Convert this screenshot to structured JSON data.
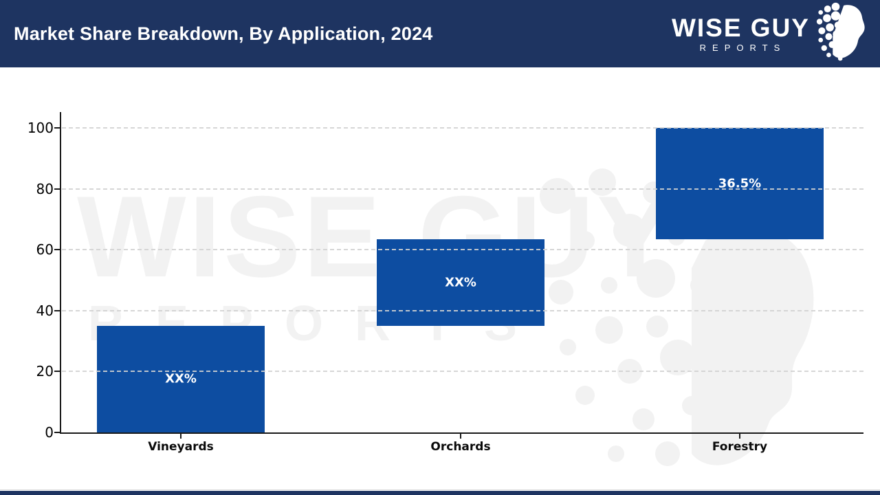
{
  "header": {
    "title": "Market Share Breakdown, By Application, 2024",
    "logo": {
      "line1": "WISE GUY",
      "line2": "REPORTS"
    }
  },
  "watermark": {
    "line1": "WISE GUY",
    "line2": "REPORTS"
  },
  "colors": {
    "header_bg": "#1e3461",
    "footer_bg": "#1e3461",
    "bar": "#0d4da1",
    "bar_label": "#ffffff",
    "gridline": "#d2d2d2",
    "watermark": "#f2f2f2"
  },
  "chart_data": {
    "type": "bar",
    "subtype": "floating-waterfall",
    "title": "Market Share Breakdown, By Application, 2024",
    "categories": [
      "Vineyards",
      "Orchards",
      "Forestry"
    ],
    "series": [
      {
        "name": "Market Share",
        "segments": [
          {
            "category": "Vineyards",
            "start": 0,
            "end": 35,
            "value_label": "XX%"
          },
          {
            "category": "Orchards",
            "start": 35,
            "end": 63.5,
            "value_label": "XX%"
          },
          {
            "category": "Forestry",
            "start": 63.5,
            "end": 100,
            "value_label": "36.5%"
          }
        ]
      }
    ],
    "yticks": [
      0,
      20,
      40,
      60,
      80,
      100
    ],
    "ylim": [
      0,
      100
    ],
    "xlabel": "",
    "ylabel": "",
    "grid": "horizontal-dashed",
    "legend": "none"
  }
}
